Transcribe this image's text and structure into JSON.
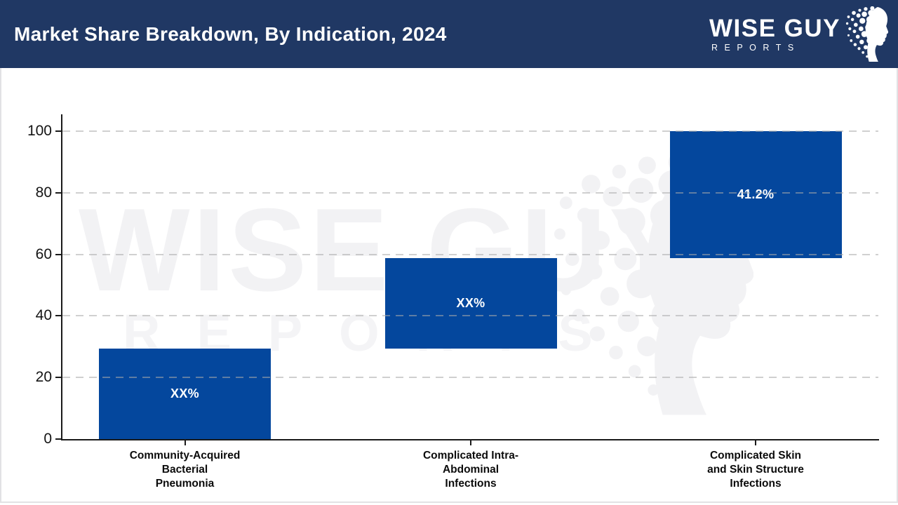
{
  "header": {
    "title": "Market Share Breakdown, By Indication, 2024",
    "logo": {
      "name": "WISE GUY",
      "subtitle": "REPORTS"
    }
  },
  "watermark": {
    "line1": "WISE GUY",
    "line2": "REPORTS"
  },
  "chart_data": {
    "type": "bar",
    "subtype": "waterfall-style floating bars that stack to 100%",
    "title": "Market Share Breakdown, By Indication, 2024",
    "categories": [
      [
        "Community-Acquired",
        "Bacterial",
        "Pneumonia"
      ],
      [
        "Complicated Intra-",
        "Abdominal",
        "Infections"
      ],
      [
        "Complicated Skin",
        "and Skin Structure",
        "Infections"
      ]
    ],
    "segments": [
      {
        "category": "Community-Acquired Bacterial Pneumonia",
        "label": "XX%",
        "start": 0,
        "end": 29.4,
        "implied_value": 29.4
      },
      {
        "category": "Complicated Intra-Abdominal Infections",
        "label": "XX%",
        "start": 29.4,
        "end": 58.8,
        "implied_value": 29.4
      },
      {
        "category": "Complicated Skin and Skin Structure Infections",
        "label": "41.2%",
        "start": 58.8,
        "end": 100,
        "value": 41.2
      }
    ],
    "yticks": [
      0,
      20,
      40,
      60,
      80,
      100
    ],
    "ylim": [
      0,
      100
    ],
    "xlabel": "",
    "ylabel": "",
    "grid": "horizontal-dashed",
    "legend": "none",
    "bar_color": "#04479d",
    "bar_label_color": "#ffffff"
  },
  "colors": {
    "header_bg": "#203864",
    "bar": "#04479d",
    "axis": "#1a1a1a",
    "gridline": "#d9d9d9",
    "watermark": "#f2f2f4",
    "frame_border": "#e2e2e4"
  }
}
